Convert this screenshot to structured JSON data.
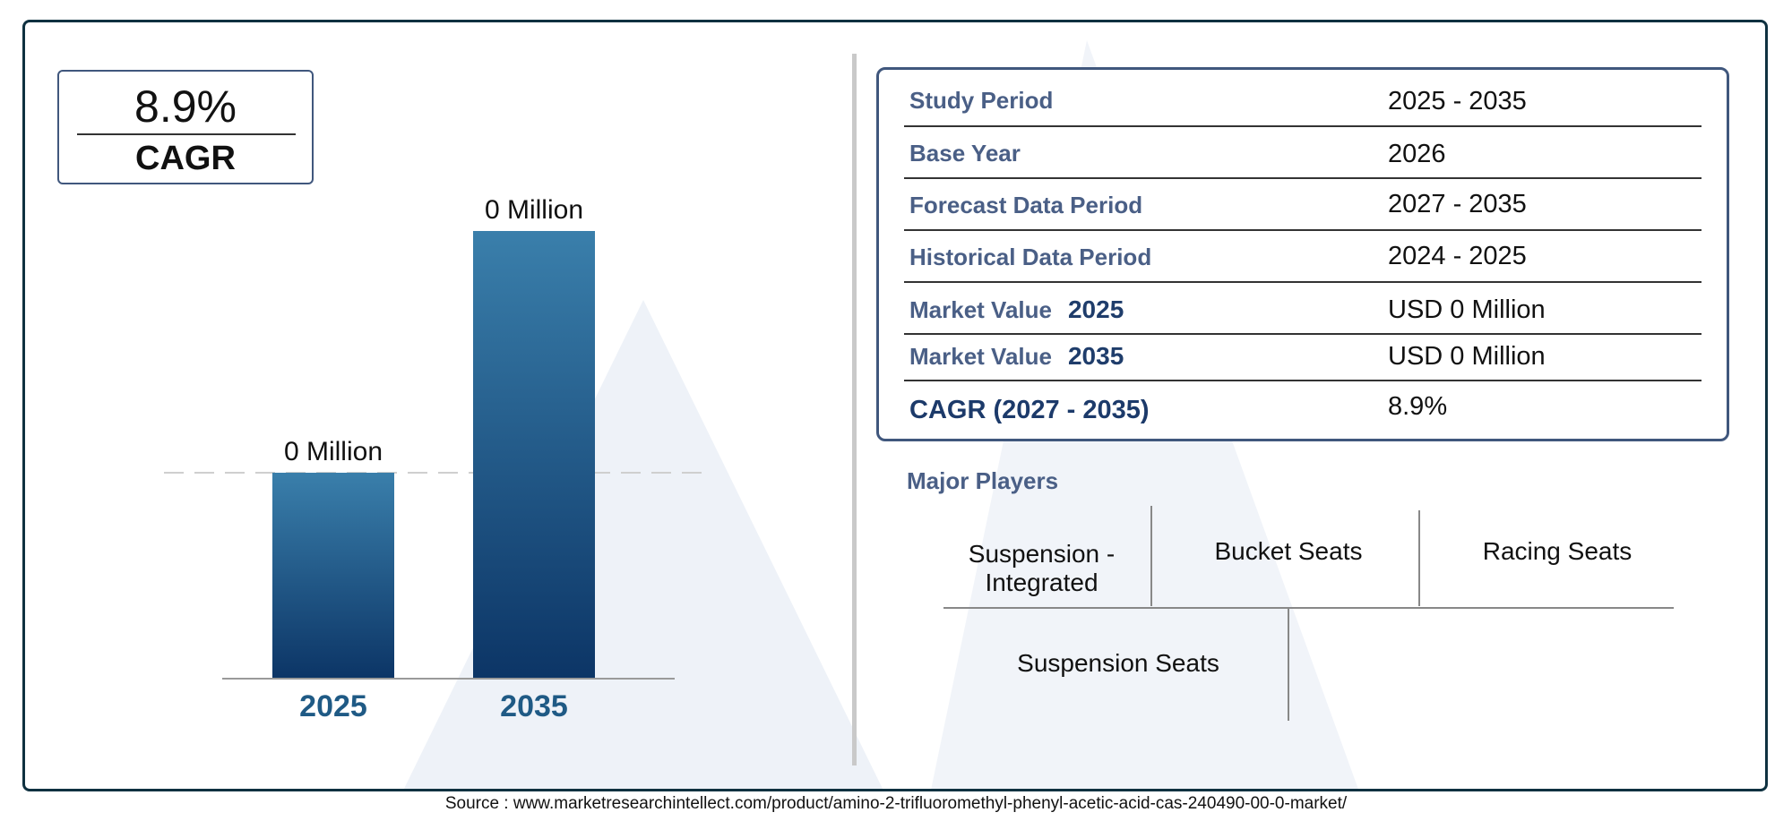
{
  "cagr_box": {
    "value": "8.9%",
    "label": "CAGR"
  },
  "chart_data": {
    "type": "bar",
    "categories": [
      "2025",
      "2035"
    ],
    "values": [
      0.46,
      1.0
    ],
    "value_labels": [
      "0 Million",
      "0 Million"
    ],
    "title": "",
    "xlabel": "",
    "ylabel": "",
    "ylim": [
      0,
      1
    ],
    "grid": false,
    "bar_color_top": "#3a7fab",
    "bar_color_bottom": "#0c3566",
    "reference_line": {
      "style": "dashed",
      "at_value": 0.46
    }
  },
  "table": {
    "rows": [
      {
        "label": "Study Period",
        "year": "",
        "value": "2025 - 2035"
      },
      {
        "label": "Base Year",
        "year": "",
        "value": "2026"
      },
      {
        "label": "Forecast Data Period",
        "year": "",
        "value": "2027 - 2035"
      },
      {
        "label": "Historical Data Period",
        "year": "",
        "value": "2024 - 2025"
      },
      {
        "label": "Market Value",
        "year": "2025",
        "value": "USD 0 Million"
      },
      {
        "label": "Market Value",
        "year": "2035",
        "value": "USD 0 Million"
      },
      {
        "label": "CAGR (2027 - 2035)",
        "year": "",
        "value": "8.9%"
      }
    ]
  },
  "players": {
    "title": "Major Players",
    "items": [
      "Suspension -Integrated",
      "Bucket Seats",
      "Racing Seats",
      "Suspension Seats"
    ]
  },
  "source": "Source : www.marketresearchintellect.com/product/amino-2-trifluoromethyl-phenyl-acetic-acid-cas-240490-00-0-market/",
  "colors": {
    "frame": "#0f3140",
    "box_border": "#40577d",
    "label_blue": "#4a5f86",
    "year_blue": "#1f5a85",
    "watermark": "#e8eef6"
  }
}
